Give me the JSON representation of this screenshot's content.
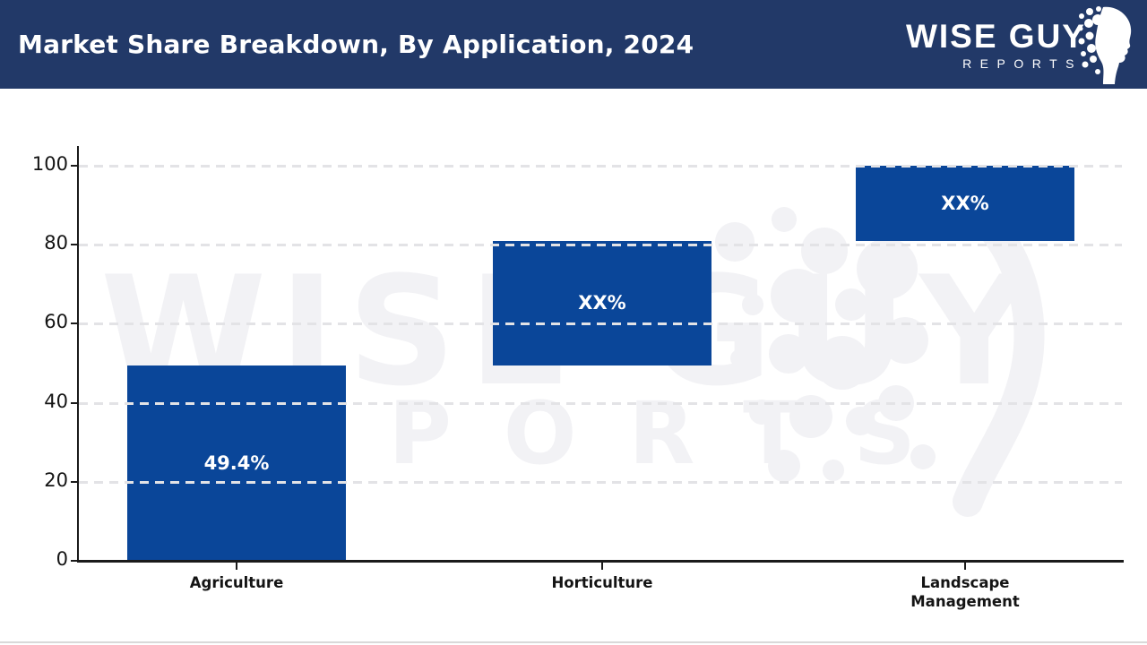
{
  "header": {
    "title": "Market Share Breakdown, By Application, 2024",
    "bg_color": "#223968",
    "logo": {
      "wordmark": "WISE GUY",
      "subtext": "REPORTS"
    }
  },
  "watermark": {
    "line1": "WISE GUY",
    "line2": "REPORTS"
  },
  "chart_data": {
    "type": "bar",
    "variant": "waterfall-breakdown",
    "title": "Market Share Breakdown, By Application, 2024",
    "categories": [
      "Agriculture",
      "Horticulture",
      "Landscape Management"
    ],
    "segments": [
      {
        "category": "Agriculture",
        "start": 0,
        "end": 49.4,
        "label": "49.4%"
      },
      {
        "category": "Horticulture",
        "start": 49.4,
        "end": 81,
        "label": "XX%"
      },
      {
        "category": "Landscape Management",
        "start": 81,
        "end": 100,
        "label": "XX%"
      }
    ],
    "yticks": [
      0,
      20,
      40,
      60,
      80,
      100
    ],
    "ylim": [
      0,
      105
    ],
    "xlabel": "",
    "ylabel": "",
    "grid": true,
    "grid_style": "dashed-horizontal",
    "legend": false,
    "bar_color": "#0A4699",
    "value_label_color": "#FFFFFF",
    "axis_color": "#1A1A1A"
  }
}
